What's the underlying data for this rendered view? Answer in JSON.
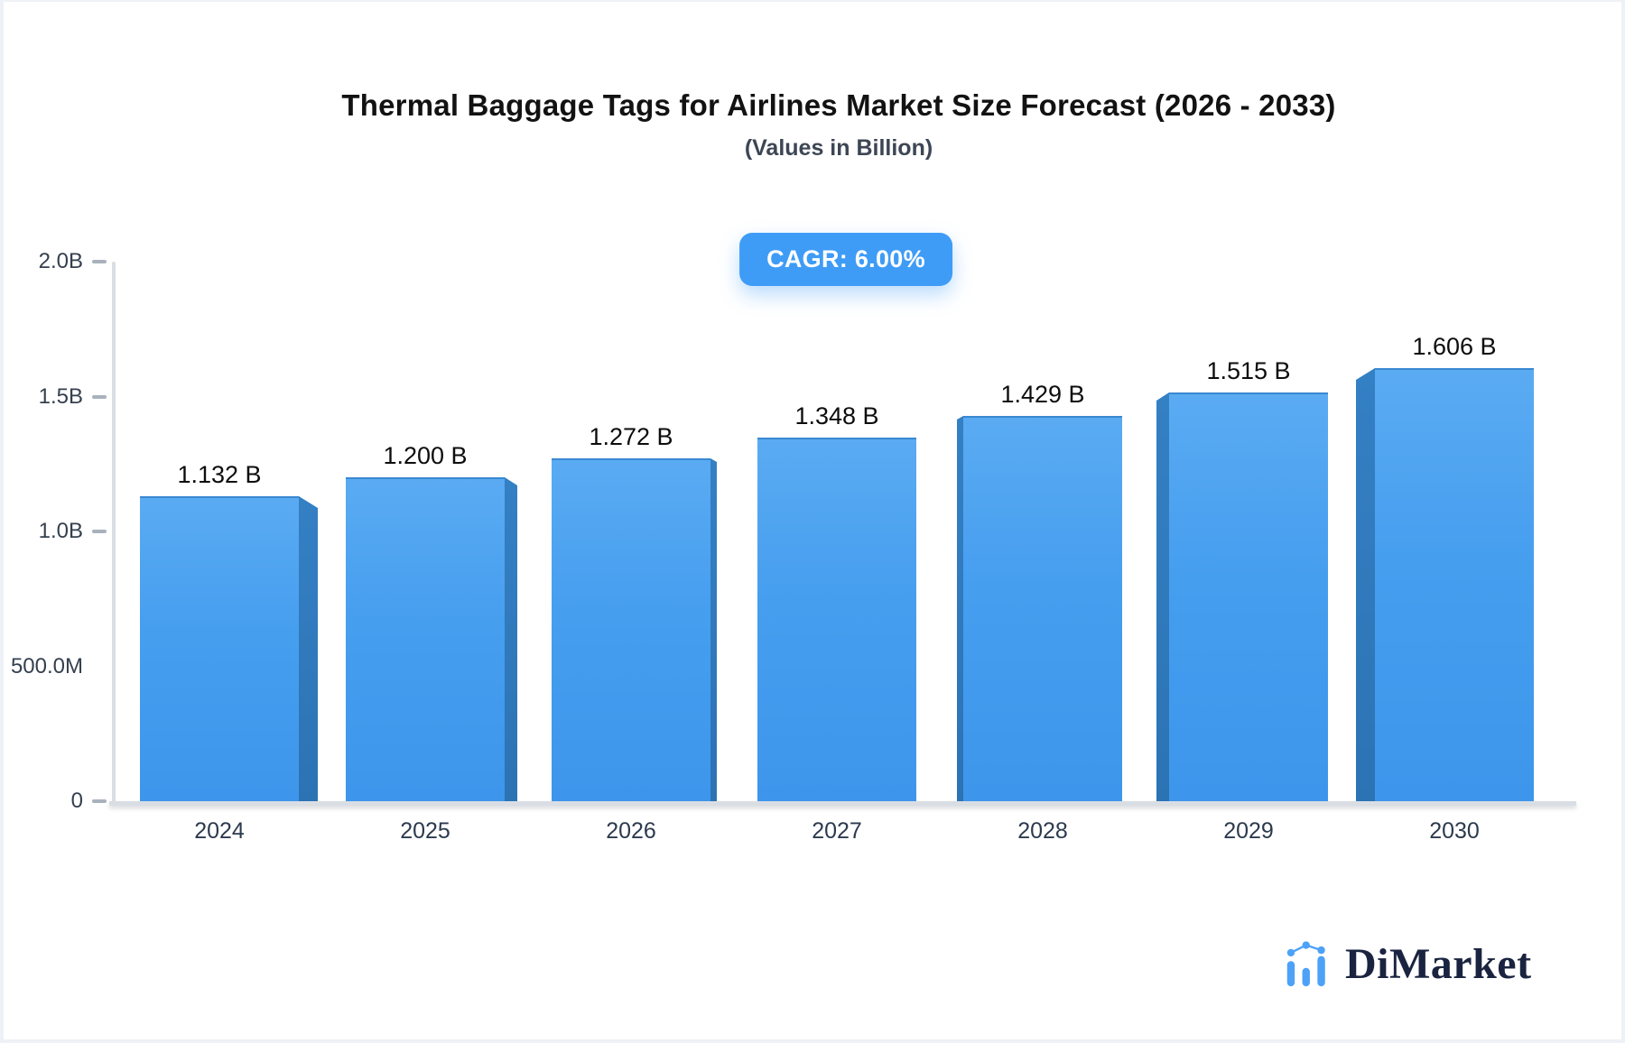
{
  "header": {
    "title": "Thermal Baggage Tags for Airlines Market Size Forecast (2026 - 2033)",
    "subtitle": "(Values in Billion)"
  },
  "badge": {
    "label": "CAGR: 6.00%",
    "color": "#3f9cf6"
  },
  "chart_data": {
    "type": "bar",
    "title": "Thermal Baggage Tags for Airlines Market Size Forecast (2026 - 2033)",
    "subtitle": "(Values in Billion)",
    "categories": [
      "2024",
      "2025",
      "2026",
      "2027",
      "2028",
      "2029",
      "2030"
    ],
    "values": [
      1.132,
      1.2,
      1.272,
      1.348,
      1.429,
      1.515,
      1.606
    ],
    "value_labels": [
      "1.132 B",
      "1.200 B",
      "1.272 B",
      "1.348 B",
      "1.429 B",
      "1.515 B",
      "1.606 B"
    ],
    "xlabel": "",
    "ylabel": "",
    "ylim": [
      0,
      2.0
    ],
    "yticks": [
      {
        "label": "2.0B",
        "value": 2.0,
        "dash": true
      },
      {
        "label": "1.5B",
        "value": 1.5,
        "dash": true
      },
      {
        "label": "1.0B",
        "value": 1.0,
        "dash": true
      },
      {
        "label": "500.0M",
        "value": 0.5,
        "dash": false
      },
      {
        "label": "0",
        "value": 0.0,
        "dash": true
      }
    ],
    "grid": false,
    "legend": false,
    "bar_color": "#3f98ee",
    "bar_side_color": "#2c73b4",
    "style": "3d-bars, perspective toward center"
  },
  "footer": {
    "brand": "DiMarket",
    "brand_icon": "bar-chart-logo-icon",
    "brand_color": "#1a2440",
    "brand_icon_color": "#4da2f7"
  }
}
